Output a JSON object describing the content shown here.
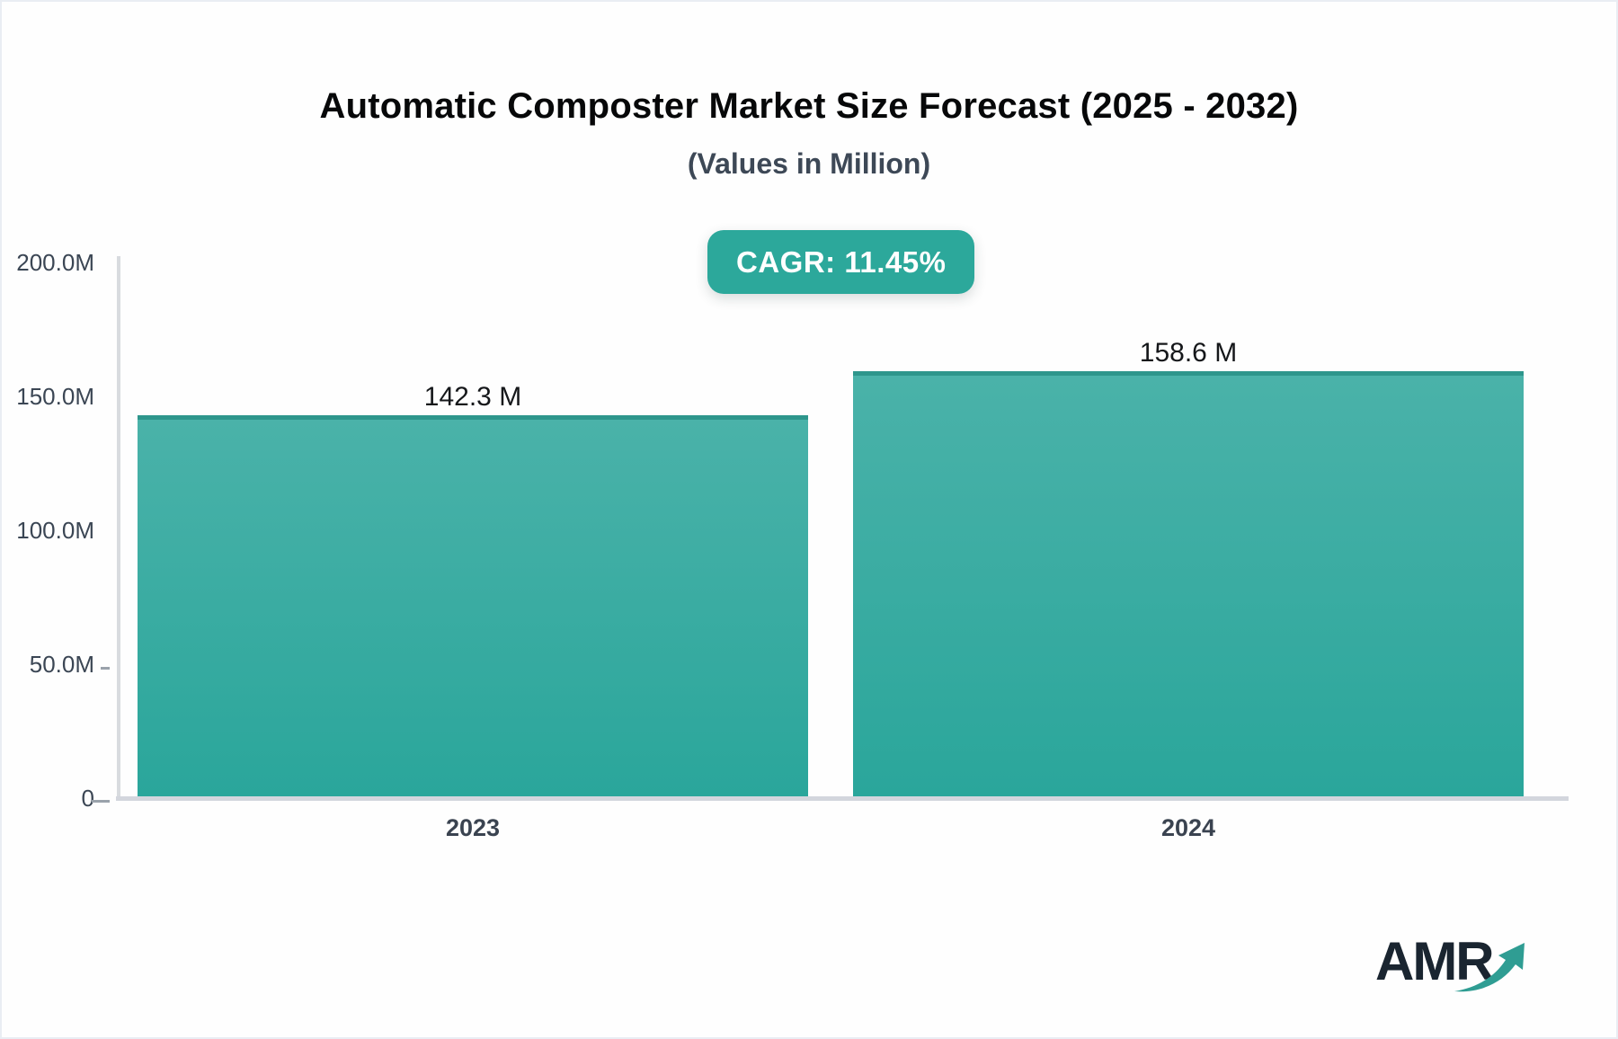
{
  "header": {
    "title": "Automatic Composter Market Size Forecast (2025 - 2032)",
    "subtitle": "(Values in Million)",
    "cagr_badge": "CAGR: 11.45%"
  },
  "colors": {
    "accent_teal": "#2ca89b",
    "bar_gradient_top": "#4ab2a9",
    "bar_gradient_bottom": "#2aa69b",
    "bar_top_border": "#2e968c",
    "axis_line": "#d8dbdf",
    "title_text": "#070809",
    "subtitle_text": "#3d4856",
    "axis_text": "#3b4654",
    "logo_navy": "#1a2530",
    "logo_arrow_teal": "#2f9d93"
  },
  "chart_data": {
    "type": "bar",
    "title": "Automatic Composter Market Size Forecast (2025 - 2032)",
    "subtitle": "(Values in Million)",
    "annotation": "CAGR: 11.45%",
    "categories": [
      "2023",
      "2024"
    ],
    "values": [
      142.3,
      158.6
    ],
    "value_labels": [
      "142.3 M",
      "158.6 M"
    ],
    "ylim": [
      0,
      200
    ],
    "ytick_labels": [
      "200.0M",
      "150.0M",
      "100.0M",
      "50.0M",
      "0"
    ],
    "xlabel": "",
    "ylabel": "",
    "grid": false,
    "legend": false,
    "bar_color_gradient": [
      "#4ab2a9",
      "#2aa69b"
    ]
  },
  "footer": {
    "logo_text": "AMR"
  }
}
